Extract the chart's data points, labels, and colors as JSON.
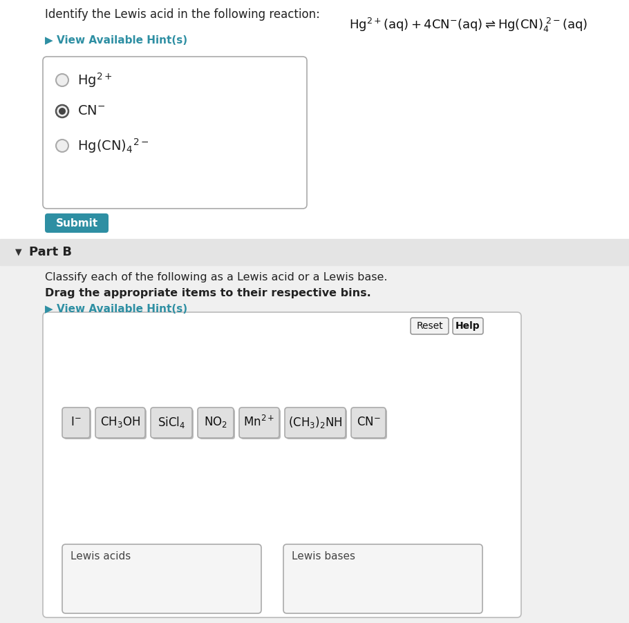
{
  "bg_color": "#ffffff",
  "part_b_bg": "#f0f0f0",
  "title_text": "Identify the Lewis acid in the following reaction:",
  "hint_text": "▶ View Available Hint(s)",
  "hint_color": "#2e8fa3",
  "radio_options": [
    "Hg$^{2+}$",
    "CN$^{-}$",
    "Hg(CN)$_4$$^{2-}$"
  ],
  "selected_radio": 1,
  "submit_text": "Submit",
  "submit_bg": "#2e8fa3",
  "submit_text_color": "#ffffff",
  "part_b_label": "Part B",
  "classify_text": "Classify each of the following as a Lewis acid or a Lewis base.",
  "drag_text": "Drag the appropriate items to their respective bins.",
  "drag_items": [
    "I$^{-}$",
    "CH$_3$OH",
    "SiCl$_4$",
    "NO$_2$",
    "Mn$^{2+}$",
    "(CH$_3$)$_2$NH",
    "CN$^{-}$"
  ],
  "lewis_acids_label": "Lewis acids",
  "lewis_bases_label": "Lewis bases",
  "reset_text": "Reset",
  "help_text": "Help",
  "box_border": "#cccccc",
  "item_bg": "#e0e0e0",
  "item_border": "#aaaaaa"
}
